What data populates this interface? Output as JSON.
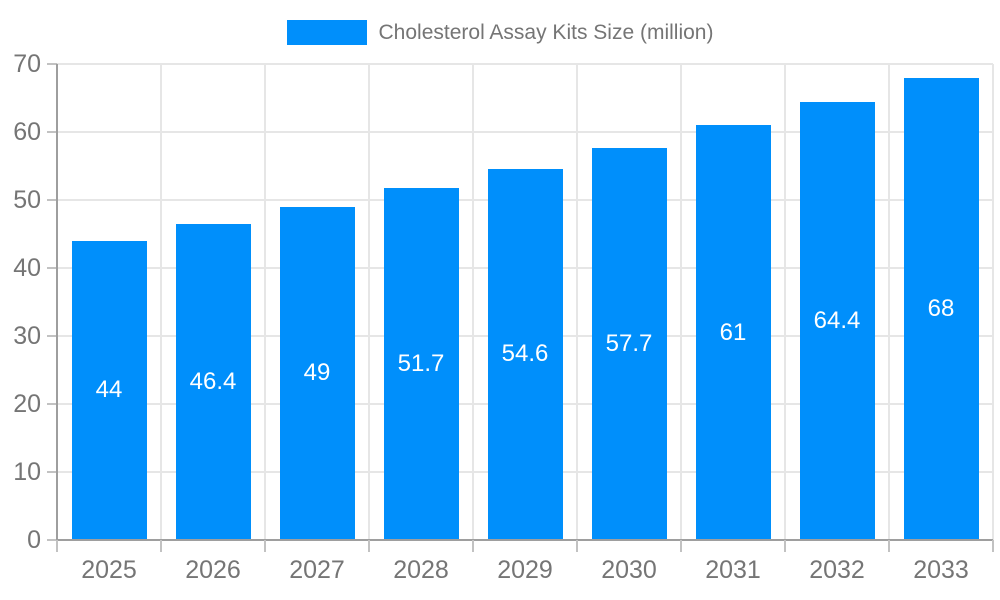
{
  "chart_data": {
    "type": "bar",
    "title": "Cholesterol Assay Kits Size (million)",
    "categories": [
      "2025",
      "2026",
      "2027",
      "2028",
      "2029",
      "2030",
      "2031",
      "2032",
      "2033"
    ],
    "values": [
      44,
      46.4,
      49,
      51.7,
      54.6,
      57.7,
      61,
      64.4,
      68
    ],
    "xlabel": "",
    "ylabel": "",
    "ylim": [
      0,
      70
    ],
    "yticks": [
      0,
      10,
      20,
      30,
      40,
      50,
      60,
      70
    ],
    "grid": true,
    "legend_position": "top",
    "colors": {
      "bar": "#008FFB",
      "bar_label": "#FFFFFF",
      "axis_text": "#757575",
      "grid_line": "#E6E6E6",
      "axis_line": "#9E9E9E",
      "tick": "#C2C2C2",
      "legend_text": "#757575",
      "background": "#FFFFFF"
    }
  }
}
